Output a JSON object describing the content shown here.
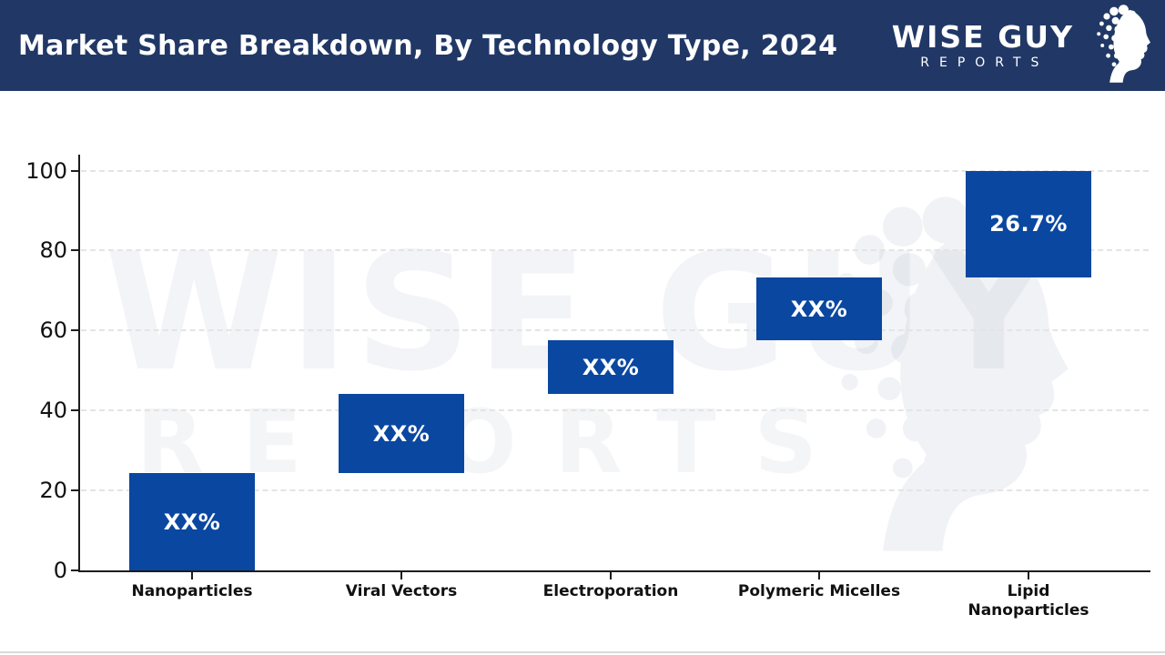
{
  "header": {
    "title": "Market Share Breakdown, By Technology Type, 2024",
    "bg_color": "#213866",
    "logo": {
      "name": "WISE GUY REPORTS",
      "line1": "WISE GUY",
      "line2": "REPORTS"
    }
  },
  "watermark": {
    "line1": "WISE GUY",
    "line2": "REPORTS"
  },
  "chart_data": {
    "type": "bar",
    "subtype": "waterfall",
    "title": "Market Share Breakdown, By Technology Type, 2024",
    "categories": [
      "Nanoparticles",
      "Viral Vectors",
      "Electroporation",
      "Polymeric Micelles",
      "Lipid Nanoparticles"
    ],
    "tick_labels": [
      "Nanoparticles",
      "Viral Vectors",
      "Electroporation",
      "Polymeric Micelles",
      "Lipid\nNanoparticles"
    ],
    "bars": [
      {
        "category": "Nanoparticles",
        "start": 0,
        "value": 24.3,
        "display_label": "XX%"
      },
      {
        "category": "Viral Vectors",
        "start": 24.3,
        "value": 19.8,
        "display_label": "XX%"
      },
      {
        "category": "Electroporation",
        "start": 44.1,
        "value": 13.4,
        "display_label": "XX%"
      },
      {
        "category": "Polymeric Micelles",
        "start": 57.5,
        "value": 15.8,
        "display_label": "XX%"
      },
      {
        "category": "Lipid Nanoparticles",
        "start": 73.3,
        "value": 26.7,
        "display_label": "26.7%"
      }
    ],
    "ylim": [
      0,
      100
    ],
    "yticks": [
      0,
      20,
      40,
      60,
      80,
      100
    ],
    "xlabel": "",
    "ylabel": "",
    "grid": "horizontal-dashed",
    "legend": "none",
    "bar_color": "#0a47a0",
    "bar_label_color": "#ffffff",
    "axis_color": "#1c1c1c"
  }
}
